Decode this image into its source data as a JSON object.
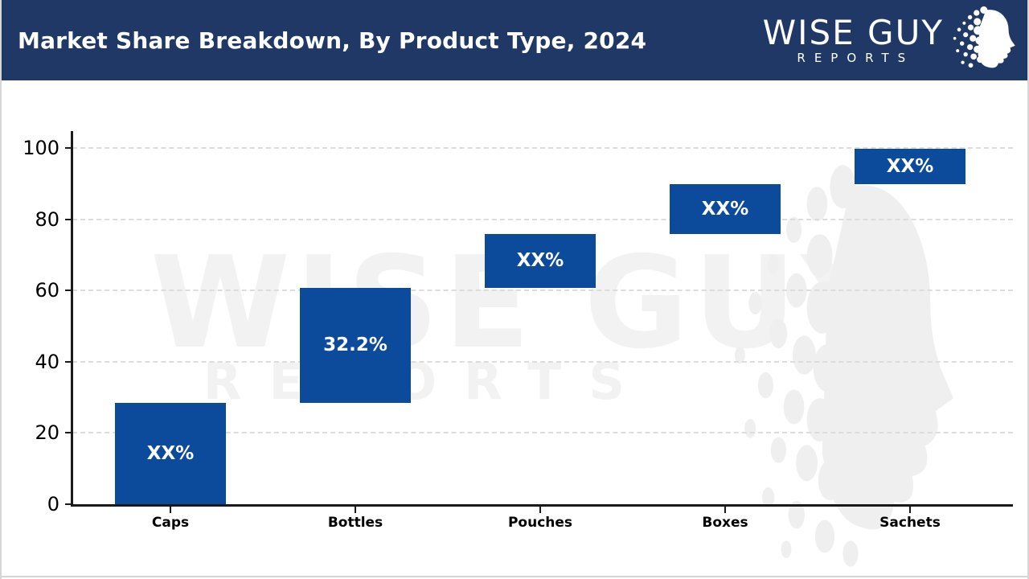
{
  "header": {
    "title": "Market Share Breakdown, By Product Type, 2024",
    "background_color": "#1f3866",
    "logo": {
      "line1": "WISE GUY",
      "line2": "REPORTS"
    }
  },
  "watermark": {
    "line1": "WISE GUY",
    "line2": "REPORTS"
  },
  "chart_data": {
    "type": "bar",
    "subtype": "waterfall",
    "title": "Market Share Breakdown, By Product Type, 2024",
    "categories": [
      "Caps",
      "Bottles",
      "Pouches",
      "Boxes",
      "Sachets"
    ],
    "bar_labels": [
      "XX%",
      "32.2%",
      "XX%",
      "XX%",
      "XX%"
    ],
    "segments": [
      {
        "category": "Caps",
        "start": 0,
        "end": 28.5,
        "value": 28.5,
        "label": "XX%"
      },
      {
        "category": "Bottles",
        "start": 28.5,
        "end": 60.7,
        "value": 32.2,
        "label": "32.2%"
      },
      {
        "category": "Pouches",
        "start": 60.7,
        "end": 75.9,
        "value": 15.2,
        "label": "XX%"
      },
      {
        "category": "Boxes",
        "start": 75.9,
        "end": 89.9,
        "value": 14.0,
        "label": "XX%"
      },
      {
        "category": "Sachets",
        "start": 89.9,
        "end": 99.7,
        "value": 9.8,
        "label": "XX%"
      }
    ],
    "xlabel": "",
    "ylabel": "",
    "yticks": [
      0,
      20,
      40,
      60,
      80,
      100
    ],
    "ylim": [
      0,
      105
    ],
    "grid": "horizontal-dashed",
    "legend": "none",
    "bar_color": "#0c4a9c",
    "label_color": "#ffffff"
  }
}
